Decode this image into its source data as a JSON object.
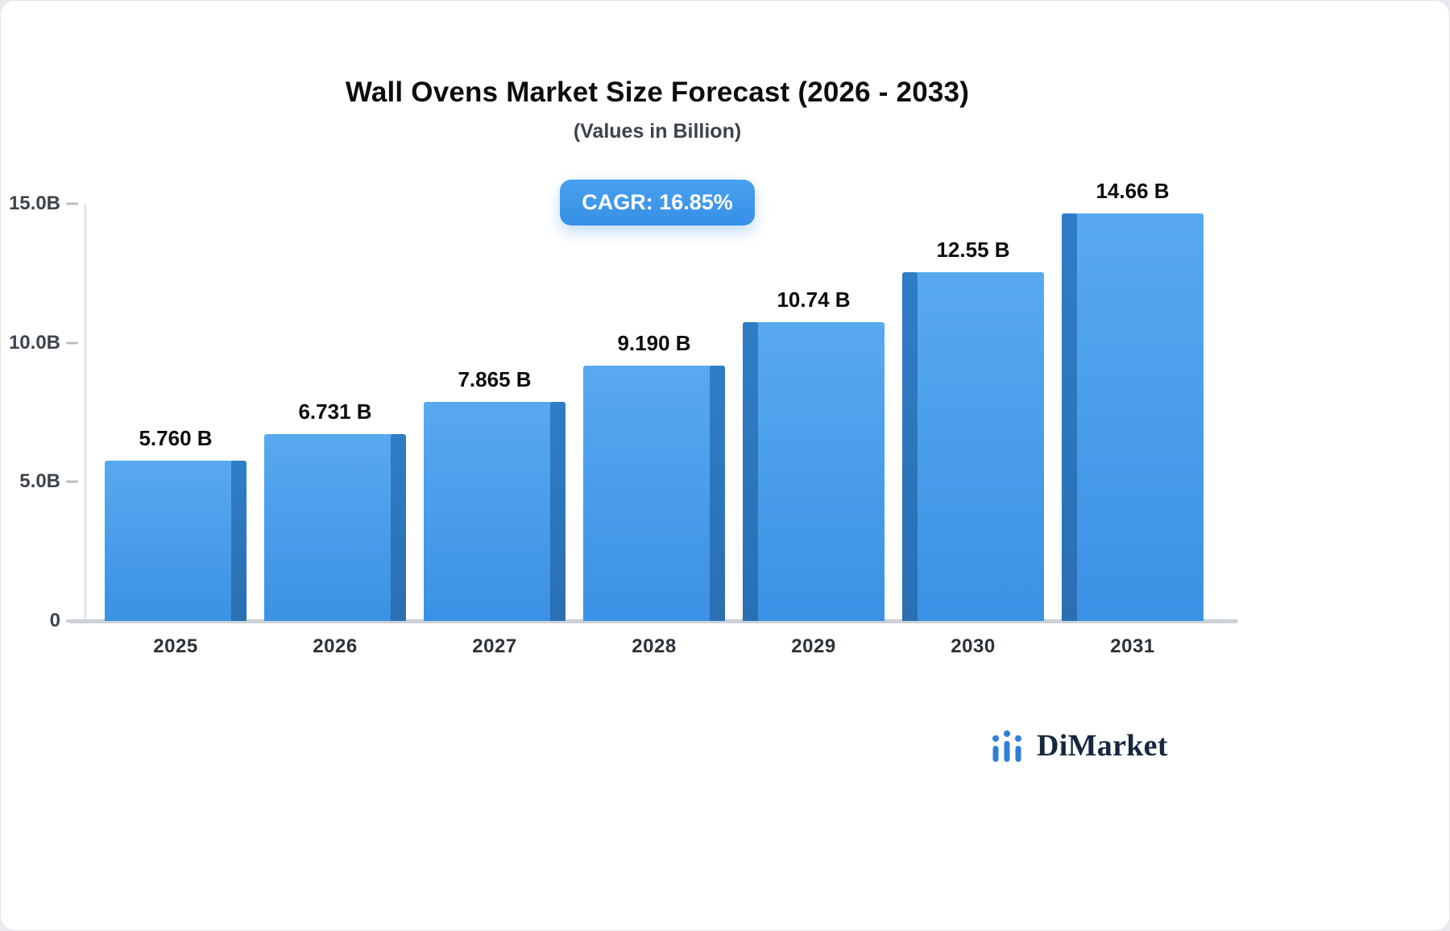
{
  "header": {
    "title": "Wall Ovens Market Size Forecast (2026 - 2033)",
    "subtitle": "(Values in Billion)",
    "cagr_label": "CAGR: 16.85%"
  },
  "chart_data": {
    "type": "bar",
    "title": "Wall Ovens Market Size Forecast (2026 - 2033)",
    "subtitle": "(Values in Billion)",
    "categories": [
      "2025",
      "2026",
      "2027",
      "2028",
      "2029",
      "2030",
      "2031"
    ],
    "values": [
      5.76,
      6.731,
      7.865,
      9.19,
      10.74,
      12.55,
      14.66
    ],
    "value_labels": [
      "5.760 B",
      "6.731 B",
      "7.865 B",
      "9.190 B",
      "10.74 B",
      "12.55 B",
      "14.66 B"
    ],
    "xlabel": "",
    "ylabel": "",
    "ylim": [
      0,
      15
    ],
    "y_ticks": [
      {
        "value": 15,
        "label": "15.0B"
      },
      {
        "value": 10,
        "label": "10.0B"
      },
      {
        "value": 5,
        "label": "5.0B"
      },
      {
        "value": 0,
        "label": "0"
      }
    ],
    "grid": false,
    "legend": false,
    "annotation": "CAGR: 16.85%",
    "bar_color": "#3b91e5",
    "bar_edge_color": "#2a6fb2"
  },
  "footer": {
    "logo_text": "DiMarket",
    "logo_icon": "mini-bar-chart-icon",
    "logo_color": "#2e7fd8"
  }
}
